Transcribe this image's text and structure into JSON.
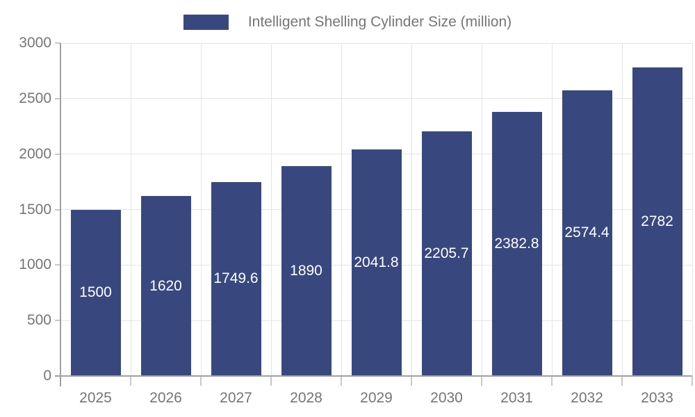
{
  "chart_data": {
    "type": "bar",
    "title": "",
    "legend": "Intelligent Shelling Cylinder Size (million)",
    "legend_position": "top-center",
    "categories": [
      "2025",
      "2026",
      "2027",
      "2028",
      "2029",
      "2030",
      "2031",
      "2032",
      "2033"
    ],
    "values": [
      1500,
      1620,
      1749.6,
      1890,
      2041.8,
      2205.7,
      2382.8,
      2574.4,
      2782
    ],
    "value_labels": [
      "1500",
      "1620",
      "1749.6",
      "1890",
      "2041.8",
      "2205.7",
      "2382.8",
      "2574.4",
      "2782"
    ],
    "xlabel": "",
    "ylabel": "",
    "ylim": [
      0,
      3000
    ],
    "yticks": [
      0,
      500,
      1000,
      1500,
      2000,
      2500,
      3000
    ],
    "ytick_labels": [
      "0",
      "500",
      "1000",
      "1500",
      "2000",
      "2500",
      "3000"
    ],
    "grid": true,
    "colors": {
      "bar": "#38487F",
      "value_text": "#ffffff",
      "axis_text": "#757575",
      "grid": "#e4e4e4",
      "axis_line": "#a0a0a0",
      "tick": "#c8c8c8",
      "background": "#ffffff"
    }
  }
}
